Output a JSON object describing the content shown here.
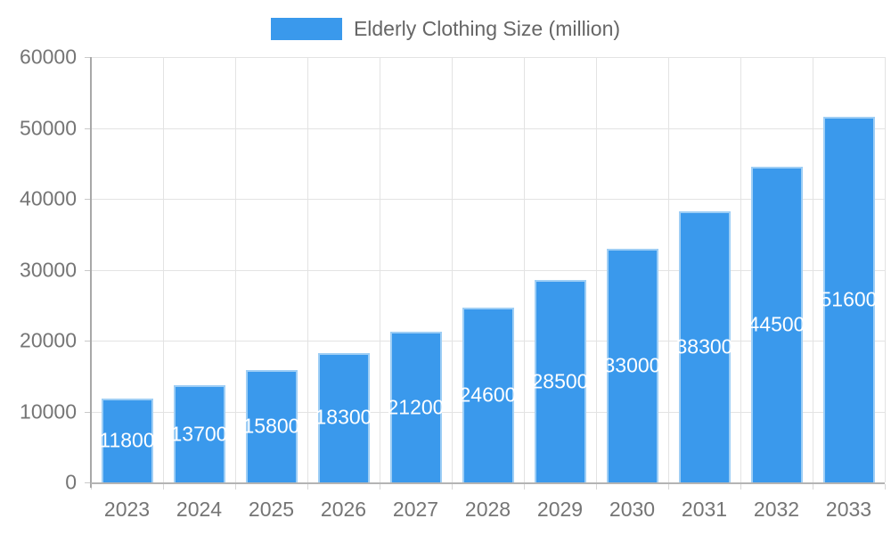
{
  "legend": {
    "label": "Elderly Clothing Size (million)"
  },
  "chart_data": {
    "type": "bar",
    "title": "Elderly Clothing Size (million)",
    "categories": [
      "2023",
      "2024",
      "2025",
      "2026",
      "2027",
      "2028",
      "2029",
      "2030",
      "2031",
      "2032",
      "2033"
    ],
    "values": [
      11800,
      13700,
      15800,
      18300,
      21200,
      24600,
      28500,
      33000,
      38300,
      44500,
      51600
    ],
    "xlabel": "",
    "ylabel": "",
    "ylim": [
      0,
      60000
    ],
    "yticks": [
      0,
      10000,
      20000,
      30000,
      40000,
      50000,
      60000
    ],
    "grid": true,
    "legend_position": "top",
    "value_labels": "inside-center-white",
    "colors": {
      "bar": "#3a99ec",
      "bar_border": "#9ecef5",
      "grid": "#e3e3e3",
      "axis": "#a8a8a8",
      "tick_label": "#757575",
      "legend_text": "#666666",
      "bar_label": "#ffffff"
    }
  }
}
